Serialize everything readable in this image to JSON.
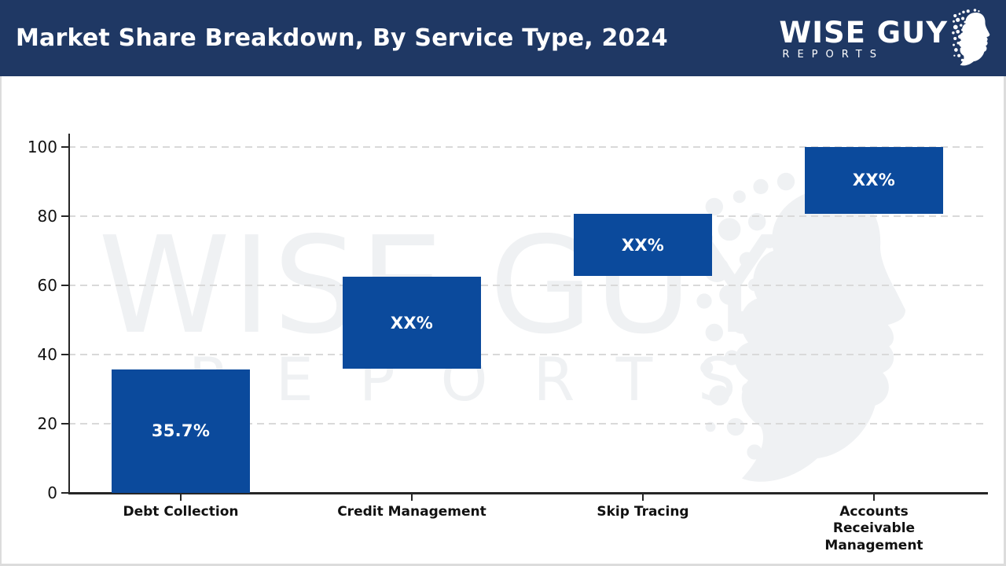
{
  "header": {
    "title": "Market Share Breakdown, By Service Type, 2024",
    "logo": {
      "line1": "WISE GUY",
      "line2": "REPORTS"
    }
  },
  "watermark": {
    "line1": "WISE GUY",
    "line2": "REPORTS"
  },
  "chart_data": {
    "type": "bar",
    "subtype": "waterfall",
    "title": "Market Share Breakdown, By Service Type, 2024",
    "categories": [
      "Debt Collection",
      "Credit Management",
      "Skip Tracing",
      "Accounts\nReceivable\nManagement"
    ],
    "segments": [
      {
        "category": "Debt Collection",
        "start": 0,
        "end": 35.7,
        "label": "35.7%"
      },
      {
        "category": "Credit Management",
        "start": 35.9,
        "end": 62.5,
        "label": "XX%"
      },
      {
        "category": "Skip Tracing",
        "start": 62.7,
        "end": 80.6,
        "label": "XX%"
      },
      {
        "category": "Accounts Receivable Management",
        "start": 80.7,
        "end": 100,
        "label": "XX%"
      }
    ],
    "yticks": [
      0,
      20,
      40,
      60,
      80,
      100
    ],
    "ylim": [
      0,
      100
    ],
    "xlabel": "",
    "ylabel": "",
    "grid": "dashed-horizontal",
    "legend": "none",
    "bar_color": "#0b4a9c",
    "bar_label_color": "#ffffff"
  },
  "colors": {
    "header_bg": "#1f3864",
    "bar_blue": "#0b4a9c",
    "watermark_gray": "#eff1f3",
    "gridline_gray": "#d9d9d9",
    "axis_black": "#262626"
  }
}
